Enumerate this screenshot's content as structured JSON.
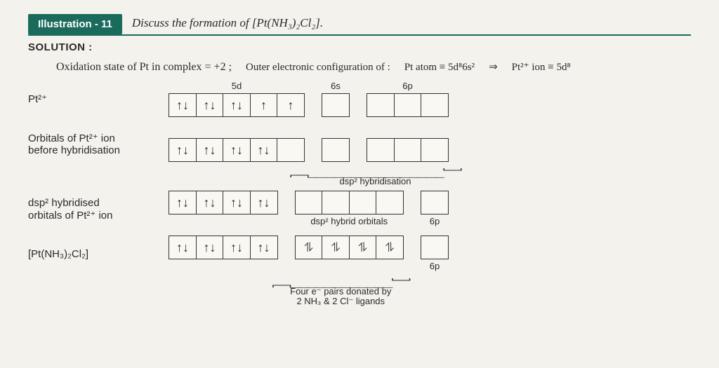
{
  "header": {
    "badge": "Illustration - 11",
    "prompt_prefix": "Discuss the formation of ",
    "prompt_formula": "[Pt(NH₃)₂Cl₂]."
  },
  "solution_label": "SOLUTION :",
  "line1": {
    "ox_state": "Oxidation state of Pt in complex = +2 ;",
    "outer_cfg_label": "Outer electronic configuration of :",
    "pt_atom": "Pt atom ≡ 5d⁸6s²",
    "arrow": "⇒",
    "pt_ion": "Pt²⁺ ion ≡ 5d⁸"
  },
  "groups": {
    "d5_label": "5d",
    "s6_label": "6s",
    "p6_label": "6p",
    "dsp2_hybridisation": "dsp² hybridisation",
    "dsp2_orbitals": "dsp² hybrid orbitals",
    "donated_line1": "Four e⁻ pairs donated by",
    "donated_line2": "2 NH₃ & 2 Cl⁻ ligands"
  },
  "rows": {
    "r1": {
      "label": "Pt²⁺",
      "d5": [
        "↑↓",
        "↑↓",
        "↑↓",
        "↑",
        "↑"
      ],
      "s6": [
        ""
      ],
      "p6": [
        "",
        "",
        ""
      ]
    },
    "r2": {
      "label_a": "Orbitals of Pt²⁺ ion",
      "label_b": "before hybridisation",
      "d5": [
        "↑↓",
        "↑↓",
        "↑↓",
        "↑↓",
        ""
      ],
      "s6": [
        ""
      ],
      "p6": [
        "",
        "",
        ""
      ]
    },
    "r3": {
      "label_a": "dsp² hybridised",
      "label_b": "orbitals of Pt²⁺ ion",
      "d4": [
        "↑↓",
        "↑↓",
        "↑↓",
        "↑↓"
      ],
      "hyb": [
        "",
        "",
        "",
        ""
      ],
      "p6": [
        ""
      ]
    },
    "r4": {
      "label": "[Pt(NH₃)₂Cl₂]",
      "d4": [
        "↑↓",
        "↑↓",
        "↑↓",
        "↑↓"
      ],
      "hyb": [
        "⥮",
        "⥮",
        "⥮",
        "⥮"
      ],
      "p6": [
        ""
      ]
    }
  }
}
